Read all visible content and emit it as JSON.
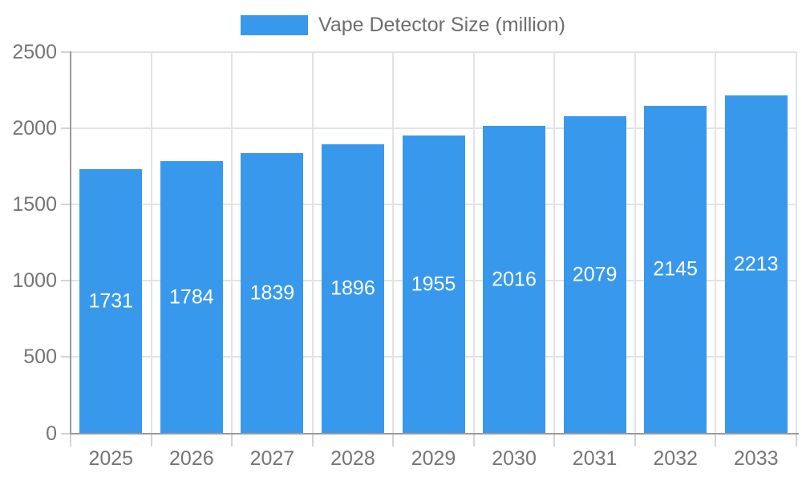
{
  "chart_data": {
    "type": "bar",
    "title": "",
    "legend": {
      "label": "Vape Detector Size (million)",
      "position": "top"
    },
    "categories": [
      "2025",
      "2026",
      "2027",
      "2028",
      "2029",
      "2030",
      "2031",
      "2032",
      "2033"
    ],
    "values": [
      1731,
      1784,
      1839,
      1896,
      1955,
      2016,
      2079,
      2145,
      2213
    ],
    "value_labels": [
      "1731",
      "1784",
      "1839",
      "1896",
      "1955",
      "2016",
      "2079",
      "2145",
      "2213"
    ],
    "xlabel": "",
    "ylabel": "",
    "ylim": [
      0,
      2500
    ],
    "ytick_step": 500,
    "yticks": [
      "0",
      "500",
      "1000",
      "1500",
      "2000",
      "2500"
    ],
    "grid": true,
    "colors": {
      "bar": "#3899EC",
      "value_label": "#FFFFFF",
      "axis_line": "#9A9A9A",
      "gridline": "#E3E3E3",
      "tick": "#D4D4D4",
      "tick_label": "#757575",
      "legend_text": "#6E6E6E",
      "background": "#FFFFFF"
    }
  }
}
